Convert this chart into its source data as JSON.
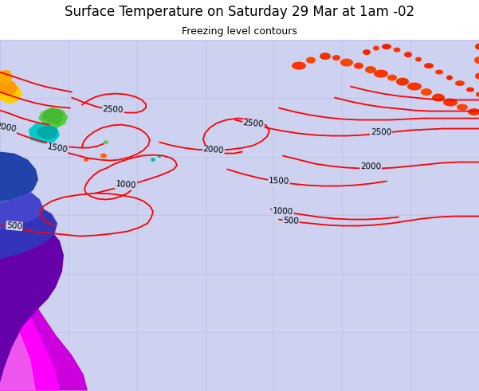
{
  "title": "Surface Temperature on Saturday 29 Mar at 1am -02",
  "subtitle": "Freezing level contours",
  "title_fontsize": 12,
  "subtitle_fontsize": 9,
  "ocean_color": "#ccd2f0",
  "contour_color": "#ff0000",
  "grid_color": "#b8bde8",
  "fig_width": 6.01,
  "fig_height": 4.91,
  "dpi": 100
}
